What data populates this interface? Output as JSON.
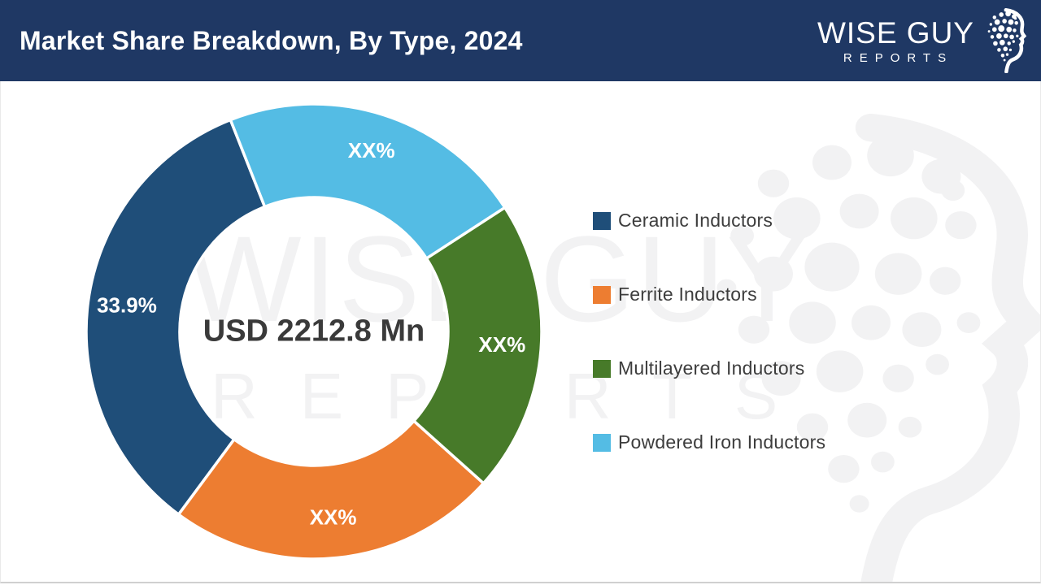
{
  "header": {
    "title": "Market Share Breakdown, By Type, 2024",
    "logo": {
      "line1": "WISE GUY",
      "line2": "REPORTS"
    },
    "bg_color": "#1f3864"
  },
  "watermark": {
    "line1": "WISE GUY",
    "line2": "REPORTS"
  },
  "chart_data": {
    "type": "pie",
    "subtype": "donut",
    "title": "Market Share Breakdown, By Type, 2024",
    "center_label": "USD 2212.8 Mn",
    "start_angle_deg": 338.5,
    "direction": "counterclockwise",
    "outer_radius_px": 280,
    "inner_radius_px": 165,
    "legend_position": "right",
    "segments": [
      {
        "name": "Ceramic Inductors",
        "color": "#1f4e79",
        "label": "33.9%",
        "share_pct": 33.9,
        "share_is_estimated": false
      },
      {
        "name": "Ferrite Inductors",
        "color": "#ed7d31",
        "label": "XX%",
        "share_pct": 23.5,
        "share_is_estimated": true
      },
      {
        "name": "Multilayered Inductors",
        "color": "#477a29",
        "label": "XX%",
        "share_pct": 20.8,
        "share_is_estimated": true
      },
      {
        "name": "Powdered Iron Inductors",
        "color": "#54bce4",
        "label": "XX%",
        "share_pct": 21.8,
        "share_is_estimated": true
      }
    ],
    "colors": {
      "center_text": "#3a3a3a",
      "legend_text": "#3d3d3d",
      "segment_label_text": "#ffffff",
      "segment_gap": "#ffffff"
    }
  }
}
